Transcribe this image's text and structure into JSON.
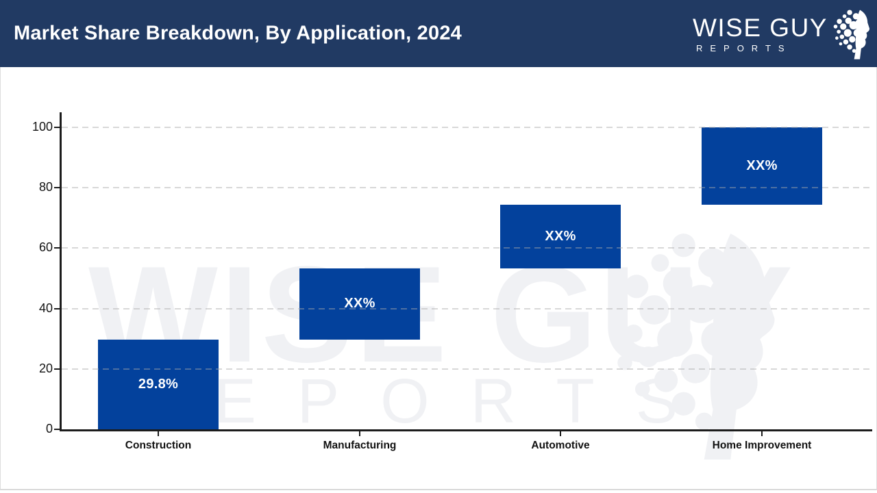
{
  "header": {
    "title": "Market Share Breakdown, By Application, 2024",
    "logo": {
      "line1": "WISE GUY",
      "line2": "REPORTS"
    }
  },
  "watermark": {
    "line1": "WISE GUY",
    "line2": "REPORTS"
  },
  "colors": {
    "header_bg": "#213a63",
    "bar": "#03419c",
    "axis": "#1c1c1c",
    "gridline": "#a8a8a8",
    "watermark": "#f0f1f4",
    "bar_label_text": "#ffffff",
    "title_text": "#ffffff"
  },
  "chart_data": {
    "type": "bar",
    "style": "waterfall",
    "title": "Market Share Breakdown, By Application, 2024",
    "categories": [
      "Construction",
      "Manufacturing",
      "Automotive",
      "Home Improvement"
    ],
    "segments": [
      {
        "category": "Construction",
        "start": 0,
        "end": 29.8,
        "label": "29.8%"
      },
      {
        "category": "Manufacturing",
        "start": 29.8,
        "end": 53.3,
        "label": "XX%"
      },
      {
        "category": "Automotive",
        "start": 53.3,
        "end": 74.4,
        "label": "XX%"
      },
      {
        "category": "Home Improvement",
        "start": 74.4,
        "end": 100,
        "label": "XX%"
      }
    ],
    "xlabel": "",
    "ylabel": "",
    "ylim": [
      0,
      100
    ],
    "yticks": [
      0,
      20,
      40,
      60,
      80,
      100
    ],
    "grid": true,
    "grid_style": "dashed",
    "legend": false
  }
}
